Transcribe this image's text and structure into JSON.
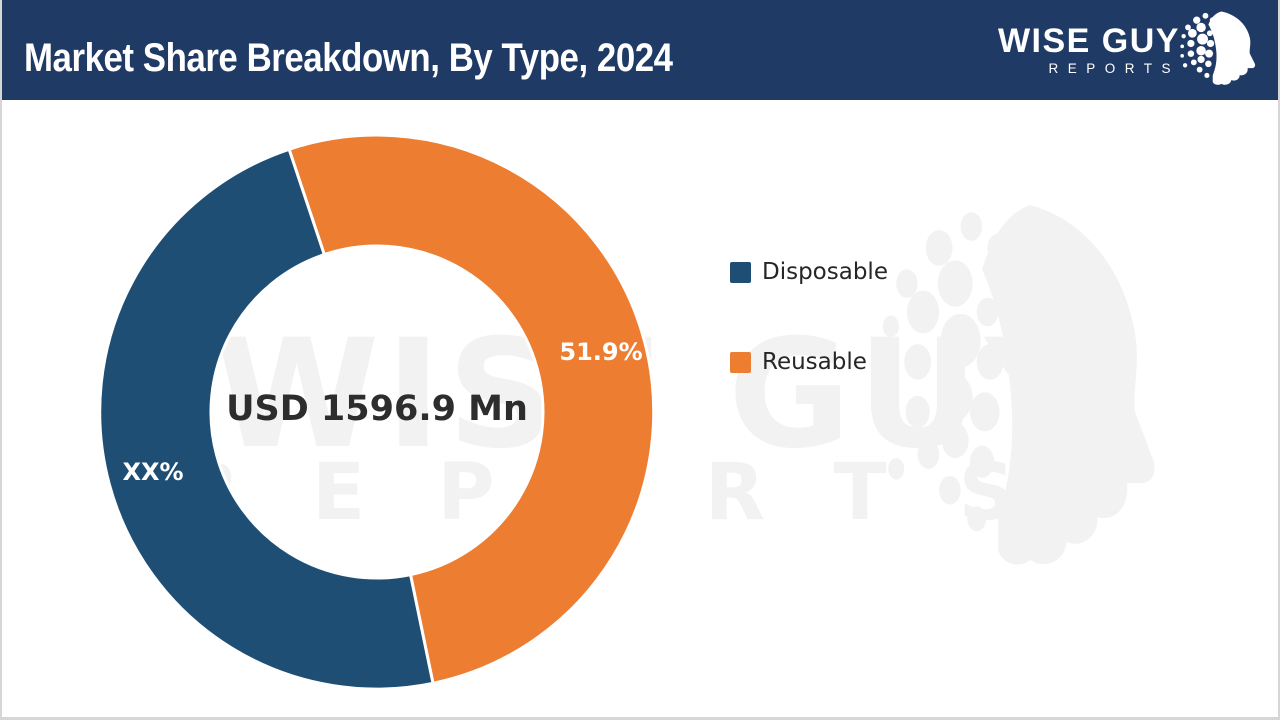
{
  "header": {
    "title": "Market Share Breakdown, By Type, 2024",
    "bg_color": "#203a66",
    "logo": {
      "line1": "WISE GUY",
      "line2": "REPORTS"
    }
  },
  "watermark": {
    "line1": "WISE GUY",
    "line2": "REPORTS"
  },
  "chart_data": {
    "type": "pie",
    "subtype": "donut",
    "title": "Market Share Breakdown, By Type, 2024",
    "center_label": "USD 1596.9 Mn",
    "hole_ratio": 0.6,
    "start_angle_deg": 108.5,
    "direction": "clockwise",
    "gridlines": false,
    "legend_position": "right",
    "segments": [
      {
        "label": "Reusable",
        "value_pct": 51.9,
        "display_label": "51.9%",
        "color": "#ed7d31"
      },
      {
        "label": "Disposable",
        "value_pct": 48.1,
        "display_label": "XX%",
        "color": "#1f4e74"
      }
    ],
    "legend": {
      "items": [
        {
          "label": "Disposable",
          "color": "#1f4e74"
        },
        {
          "label": "Reusable",
          "color": "#ed7d31"
        }
      ]
    }
  }
}
